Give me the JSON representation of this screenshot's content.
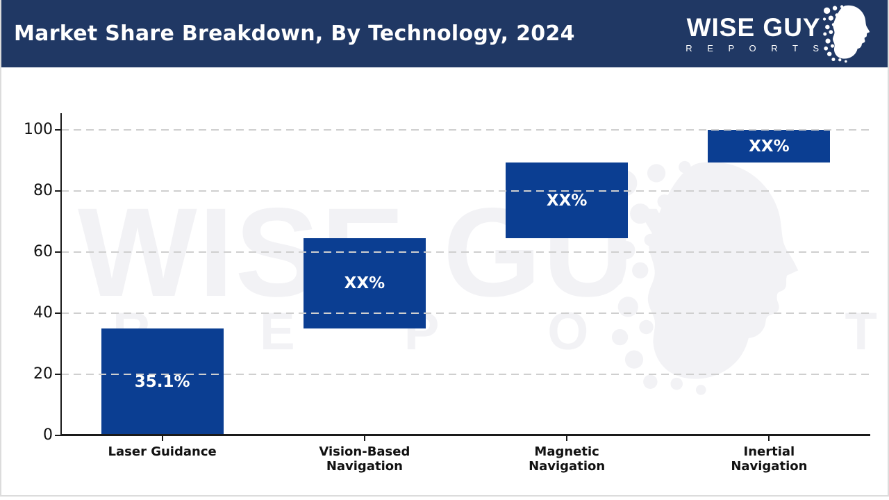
{
  "header": {
    "title": "Market Share Breakdown, By Technology, 2024",
    "bg_color": "#203864",
    "logo": {
      "name": "WISE GUY",
      "sub": "R E P O R T S"
    }
  },
  "watermark": {
    "name": "WISE GUY",
    "sub": "R E P O R T S"
  },
  "chart_data": {
    "type": "bar",
    "variant": "waterfall",
    "title": "Market Share Breakdown, By Technology, 2024",
    "unit": "%",
    "categories": [
      "Laser Guidance",
      "Vision-Based Navigation",
      "Magnetic Navigation",
      "Inertial Navigation"
    ],
    "category_lines": [
      [
        "Laser Guidance"
      ],
      [
        "Vision-Based",
        "Navigation"
      ],
      [
        "Magnetic",
        "Navigation"
      ],
      [
        "Inertial",
        "Navigation"
      ]
    ],
    "segments": [
      {
        "category": "Laser Guidance",
        "start": 0,
        "end": 35.1,
        "label": "35.1%"
      },
      {
        "category": "Vision-Based Navigation",
        "start": 35.1,
        "end": 64.5,
        "label": "XX%"
      },
      {
        "category": "Magnetic Navigation",
        "start": 64.5,
        "end": 89.3,
        "label": "XX%"
      },
      {
        "category": "Inertial Navigation",
        "start": 89.3,
        "end": 100,
        "label": "XX%"
      }
    ],
    "yticks": [
      0,
      20,
      40,
      60,
      80,
      100
    ],
    "ylim": [
      0,
      105
    ],
    "grid": {
      "horizontal": true,
      "style": "dashed",
      "color": "#cfcfcf"
    },
    "bar_color": "#0b3e92",
    "bar_label_color": "#ffffff",
    "axis_color": "#1a1a1a",
    "legend": "none"
  }
}
